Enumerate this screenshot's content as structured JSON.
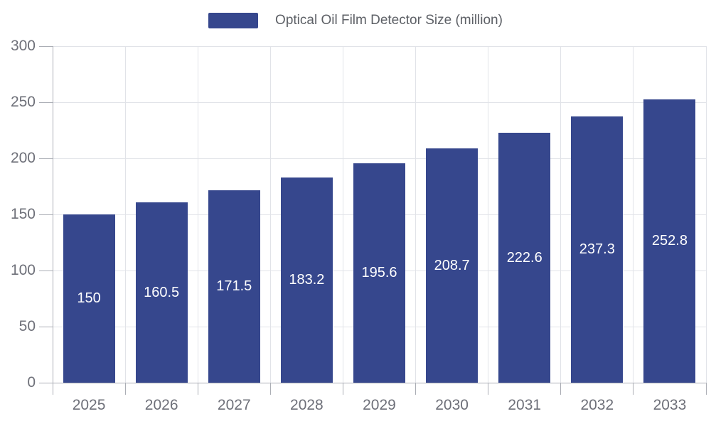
{
  "legend": {
    "label": "Optical Oil Film Detector Size (million)"
  },
  "chart_data": {
    "type": "bar",
    "title": "Optical Oil Film Detector Size (million)",
    "categories": [
      "2025",
      "2026",
      "2027",
      "2028",
      "2029",
      "2030",
      "2031",
      "2032",
      "2033"
    ],
    "series": [
      {
        "name": "Optical Oil Film Detector Size (million)",
        "values": [
          150,
          160.5,
          171.5,
          183.2,
          195.6,
          208.7,
          222.6,
          237.3,
          252.8
        ],
        "labels": [
          "150",
          "160.5",
          "171.5",
          "183.2",
          "195.6",
          "208.7",
          "222.6",
          "237.3",
          "252.8"
        ],
        "color": "#36478d"
      }
    ],
    "xlabel": "",
    "ylabel": "",
    "ylim": [
      0,
      300
    ],
    "yticks": [
      0,
      50,
      100,
      150,
      200,
      250,
      300
    ],
    "ytick_labels": [
      "0",
      "50",
      "100",
      "150",
      "200",
      "250",
      "300"
    ],
    "grid": true,
    "legend_position": "top-center",
    "value_labels_position": "inside-center",
    "value_label_color": "#ffffff",
    "colors": {
      "bar": "#36478d",
      "axis_label": "#6e7079",
      "legend_text": "#5d6066",
      "gridline": "#e1e3e8",
      "axis_line": "#abaeb5",
      "background": "#ffffff"
    }
  }
}
